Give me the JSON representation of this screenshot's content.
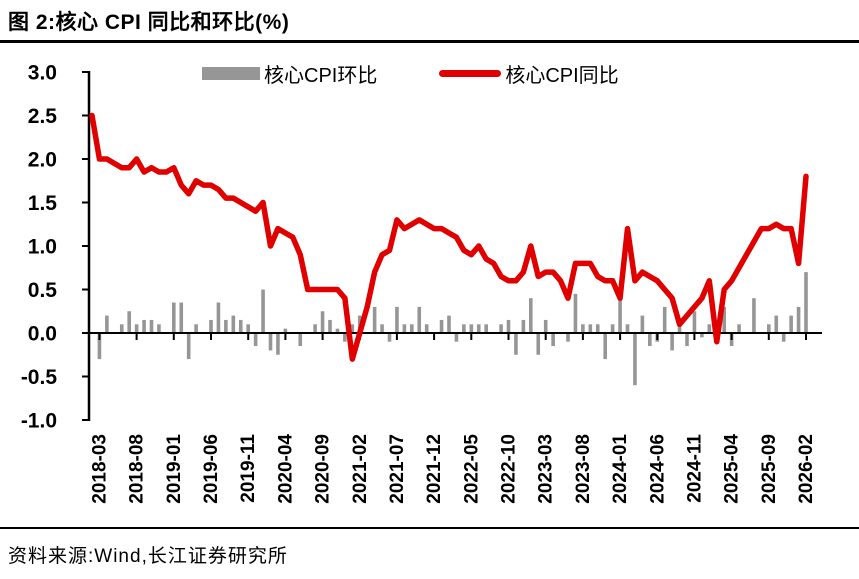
{
  "figure": {
    "title": "图 2:核心 CPI 同比和环比(%)",
    "source": "资料来源:Wind,长江证券研究所"
  },
  "legend": [
    {
      "label": "核心CPI环比",
      "swatch": "gray-bar",
      "color": "#969696"
    },
    {
      "label": "核心CPI同比",
      "swatch": "red-line",
      "color": "#e00000"
    }
  ],
  "chart_data": {
    "type": "bar+line",
    "title": "图 2:核心 CPI 同比和环比(%)",
    "unit": "%",
    "ylim": [
      -1.0,
      3.0
    ],
    "ytick_step": 0.5,
    "grid": false,
    "legend_position": "top-center",
    "ytick_labels": [
      "3.0",
      "2.5",
      "2.0",
      "1.5",
      "1.0",
      "0.5",
      "0.0",
      "-0.5",
      "-1.0"
    ],
    "xtick_labels": [
      "2018-03",
      "2018-08",
      "2019-01",
      "2019-06",
      "2019-11",
      "2020-04",
      "2020-09",
      "2021-02",
      "2021-07",
      "2021-12",
      "2022-05",
      "2022-10",
      "2023-03",
      "2023-08",
      "2024-01",
      "2024-06",
      "2024-11",
      "2025-04",
      "2025-09",
      "2026-02"
    ],
    "xtick_start_index": 1,
    "xtick_every": 5,
    "x": [
      "2018-02",
      "2018-03",
      "2018-04",
      "2018-05",
      "2018-06",
      "2018-07",
      "2018-08",
      "2018-09",
      "2018-10",
      "2018-11",
      "2018-12",
      "2019-01",
      "2019-02",
      "2019-03",
      "2019-04",
      "2019-05",
      "2019-06",
      "2019-07",
      "2019-08",
      "2019-09",
      "2019-10",
      "2019-11",
      "2019-12",
      "2020-01",
      "2020-02",
      "2020-03",
      "2020-04",
      "2020-05",
      "2020-06",
      "2020-07",
      "2020-08",
      "2020-09",
      "2020-10",
      "2020-11",
      "2020-12",
      "2021-01",
      "2021-02",
      "2021-03",
      "2021-04",
      "2021-05",
      "2021-06",
      "2021-07",
      "2021-08",
      "2021-09",
      "2021-10",
      "2021-11",
      "2021-12",
      "2022-01",
      "2022-02",
      "2022-03",
      "2022-04",
      "2022-05",
      "2022-06",
      "2022-07",
      "2022-08",
      "2022-09",
      "2022-10",
      "2022-11",
      "2022-12",
      "2023-01",
      "2023-02",
      "2023-03",
      "2023-04",
      "2023-05",
      "2023-06",
      "2023-07",
      "2023-08",
      "2023-09",
      "2023-10",
      "2023-11",
      "2023-12",
      "2024-01",
      "2024-02",
      "2024-03",
      "2024-04",
      "2024-05",
      "2024-06",
      "2024-07",
      "2024-08",
      "2024-09",
      "2024-10",
      "2024-11",
      "2024-12",
      "2025-01",
      "2025-02",
      "2025-03",
      "2025-04",
      "2025-05",
      "2025-06",
      "2025-07",
      "2025-08",
      "2025-09",
      "2025-10",
      "2025-11",
      "2025-12",
      "2026-01",
      "2026-02"
    ],
    "series": [
      {
        "name": "核心CPI环比",
        "type": "bar",
        "color": "#969696",
        "values": [
          null,
          -0.3,
          0.2,
          0.0,
          0.1,
          0.25,
          0.1,
          0.15,
          0.15,
          0.1,
          0.0,
          0.35,
          0.35,
          -0.3,
          0.1,
          0.0,
          0.15,
          0.35,
          0.15,
          0.2,
          0.15,
          0.1,
          -0.15,
          0.5,
          -0.2,
          -0.25,
          0.05,
          0.0,
          -0.15,
          0.0,
          0.1,
          0.25,
          0.15,
          0.05,
          -0.1,
          0.1,
          0.2,
          0.0,
          0.3,
          0.1,
          -0.1,
          0.3,
          0.1,
          0.1,
          0.3,
          0.1,
          0.0,
          0.15,
          0.2,
          -0.1,
          0.1,
          0.1,
          0.1,
          0.1,
          0.0,
          0.1,
          0.15,
          -0.25,
          0.15,
          0.4,
          -0.25,
          0.15,
          -0.15,
          0.0,
          -0.1,
          0.45,
          0.1,
          0.1,
          0.1,
          -0.3,
          0.1,
          0.45,
          0.1,
          -0.6,
          0.2,
          -0.15,
          -0.1,
          0.3,
          -0.2,
          0.1,
          -0.15,
          0.25,
          -0.05,
          0.1,
          0.1,
          0.3,
          -0.15,
          0.1,
          0.0,
          0.4,
          0.0,
          0.1,
          0.2,
          -0.1,
          0.2,
          0.3,
          0.7
        ]
      },
      {
        "name": "核心CPI同比",
        "type": "line",
        "color": "#e00000",
        "values": [
          2.5,
          2.0,
          2.0,
          1.95,
          1.9,
          1.9,
          2.0,
          1.85,
          1.9,
          1.85,
          1.85,
          1.9,
          1.7,
          1.6,
          1.75,
          1.7,
          1.7,
          1.65,
          1.55,
          1.55,
          1.5,
          1.45,
          1.4,
          1.5,
          1.0,
          1.2,
          1.15,
          1.1,
          0.9,
          0.5,
          0.5,
          0.5,
          0.5,
          0.5,
          0.4,
          -0.3,
          0.0,
          0.3,
          0.7,
          0.9,
          0.95,
          1.3,
          1.2,
          1.25,
          1.3,
          1.25,
          1.2,
          1.2,
          1.15,
          1.1,
          0.95,
          0.9,
          1.0,
          0.85,
          0.8,
          0.65,
          0.6,
          0.6,
          0.7,
          1.0,
          0.65,
          0.7,
          0.7,
          0.6,
          0.4,
          0.8,
          0.8,
          0.8,
          0.65,
          0.6,
          0.6,
          0.4,
          1.2,
          0.6,
          0.7,
          0.65,
          0.6,
          0.5,
          0.4,
          0.1,
          0.2,
          0.3,
          0.4,
          0.6,
          -0.1,
          0.5,
          0.6,
          0.75,
          0.9,
          1.05,
          1.2,
          1.2,
          1.25,
          1.2,
          1.2,
          0.8,
          1.8
        ]
      }
    ]
  }
}
